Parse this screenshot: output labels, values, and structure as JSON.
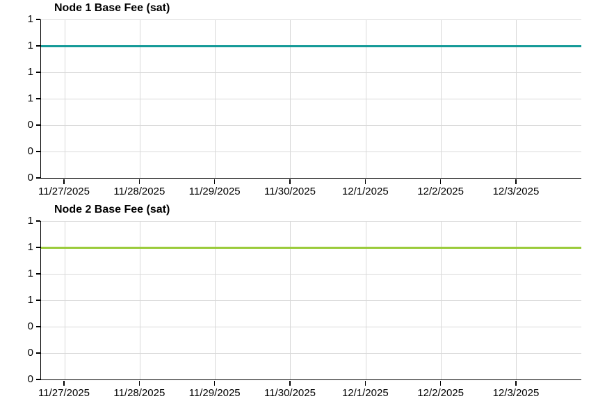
{
  "chart_data": [
    {
      "type": "line",
      "title": "Node 1 Base Fee (sat)",
      "x_tick_labels": [
        "11/27/2025",
        "11/28/2025",
        "11/29/2025",
        "11/30/2025",
        "12/1/2025",
        "12/2/2025",
        "12/3/2025"
      ],
      "series": [
        {
          "name": "Node 1 Base Fee (sat)",
          "color": "#149a98",
          "values": [
            1,
            1,
            1,
            1,
            1,
            1,
            1
          ]
        }
      ],
      "ylim": [
        0,
        1.2
      ],
      "y_ticks": [
        0,
        0.2,
        0.4,
        0.6,
        0.8,
        1.0,
        1.2
      ],
      "y_tick_labels": [
        "0",
        "0",
        "0",
        "1",
        "1",
        "1",
        "1"
      ],
      "xlabel": "",
      "ylabel": "",
      "grid": true,
      "legend_position": "none",
      "axis_color": "#000000",
      "gridline_color": "#d9d9d9"
    },
    {
      "type": "line",
      "title": "Node 2 Base Fee (sat)",
      "x_tick_labels": [
        "11/27/2025",
        "11/28/2025",
        "11/29/2025",
        "11/30/2025",
        "12/1/2025",
        "12/2/2025",
        "12/3/2025"
      ],
      "series": [
        {
          "name": "Node 2 Base Fee (sat)",
          "color": "#9bcb3b",
          "values": [
            1,
            1,
            1,
            1,
            1,
            1,
            1
          ]
        }
      ],
      "ylim": [
        0,
        1.2
      ],
      "y_ticks": [
        0,
        0.2,
        0.4,
        0.6,
        0.8,
        1.0,
        1.2
      ],
      "y_tick_labels": [
        "0",
        "0",
        "0",
        "1",
        "1",
        "1",
        "1"
      ],
      "xlabel": "",
      "ylabel": "",
      "grid": true,
      "legend_position": "none",
      "axis_color": "#000000",
      "gridline_color": "#d9d9d9"
    }
  ]
}
